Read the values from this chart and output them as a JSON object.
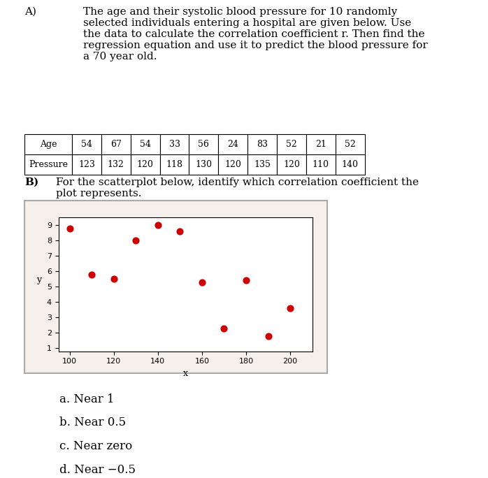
{
  "title_A": "A)",
  "text_A": "The age and their systolic blood pressure for 10 randomly\nselected individuals entering a hospital are given below. Use\nthe data to calculate the correlation coefficient r. Then find the\nregression equation and use it to predict the blood pressure for\na 70 year old.",
  "table_headers": [
    "Age",
    "54",
    "67",
    "54",
    "33",
    "56",
    "24",
    "83",
    "52",
    "21",
    "52"
  ],
  "table_row2": [
    "Pressure",
    "123",
    "132",
    "120",
    "118",
    "130",
    "120",
    "135",
    "120",
    "110",
    "140"
  ],
  "title_B": "B)",
  "text_B": "For the scatterplot below, identify which correlation coefficient the\nplot represents.",
  "scatter_x": [
    100,
    110,
    120,
    130,
    140,
    150,
    160,
    170,
    180,
    190,
    200
  ],
  "scatter_y": [
    8.8,
    5.8,
    5.5,
    8.0,
    9.0,
    8.6,
    5.3,
    2.3,
    5.4,
    1.8,
    3.6
  ],
  "scatter_color": "#cc0000",
  "scatter_marker_size": 40,
  "plot_bg_color": "#f5f0eb",
  "plot_inner_bg": "#ffffff",
  "xlim": [
    95,
    210
  ],
  "ylim": [
    1,
    9.5
  ],
  "xticks": [
    100,
    120,
    140,
    160,
    180,
    200
  ],
  "yticks": [
    1,
    2,
    3,
    4,
    5,
    6,
    7,
    8,
    9
  ],
  "xlabel": "x",
  "ylabel": "y",
  "options": [
    "a. Near 1",
    "b. Near 0.5",
    "c. Near zero",
    "d. Near −0.5"
  ],
  "bg_color": "#ffffff",
  "font_size_text": 11,
  "font_size_options": 12
}
